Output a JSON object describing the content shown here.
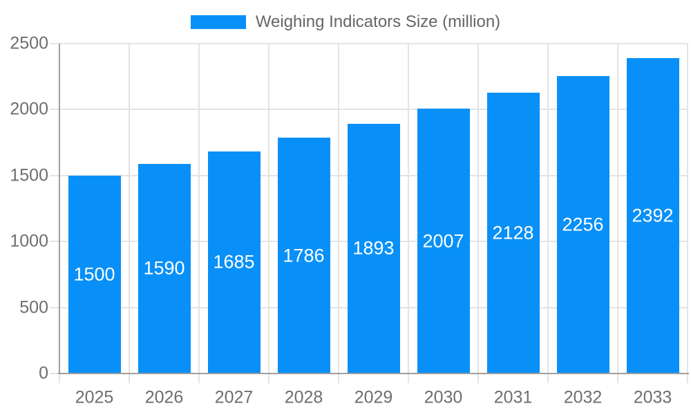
{
  "legend": {
    "label": "Weighing Indicators Size (million)"
  },
  "chart_data": {
    "type": "bar",
    "title": "Weighing Indicators Size (million)",
    "xlabel": "",
    "ylabel": "",
    "categories": [
      "2025",
      "2026",
      "2027",
      "2028",
      "2029",
      "2030",
      "2031",
      "2032",
      "2033"
    ],
    "values": [
      1500,
      1590,
      1685,
      1786,
      1893,
      2007,
      2128,
      2256,
      2392
    ],
    "ylim": [
      0,
      2500
    ],
    "yticks": [
      0,
      500,
      1000,
      1500,
      2000,
      2500
    ],
    "grid": true,
    "legend_position": "top-center",
    "bar_value_labels_shown": true,
    "colors": {
      "bar": "#0890F8",
      "bar_label_text": "#FFFFFF",
      "axis_line": "#9E9E9E",
      "gridline": "#E3E3E3",
      "tick_label_text": "#6E6E6E",
      "legend_text": "#666666",
      "background": "#FFFFFF"
    }
  }
}
